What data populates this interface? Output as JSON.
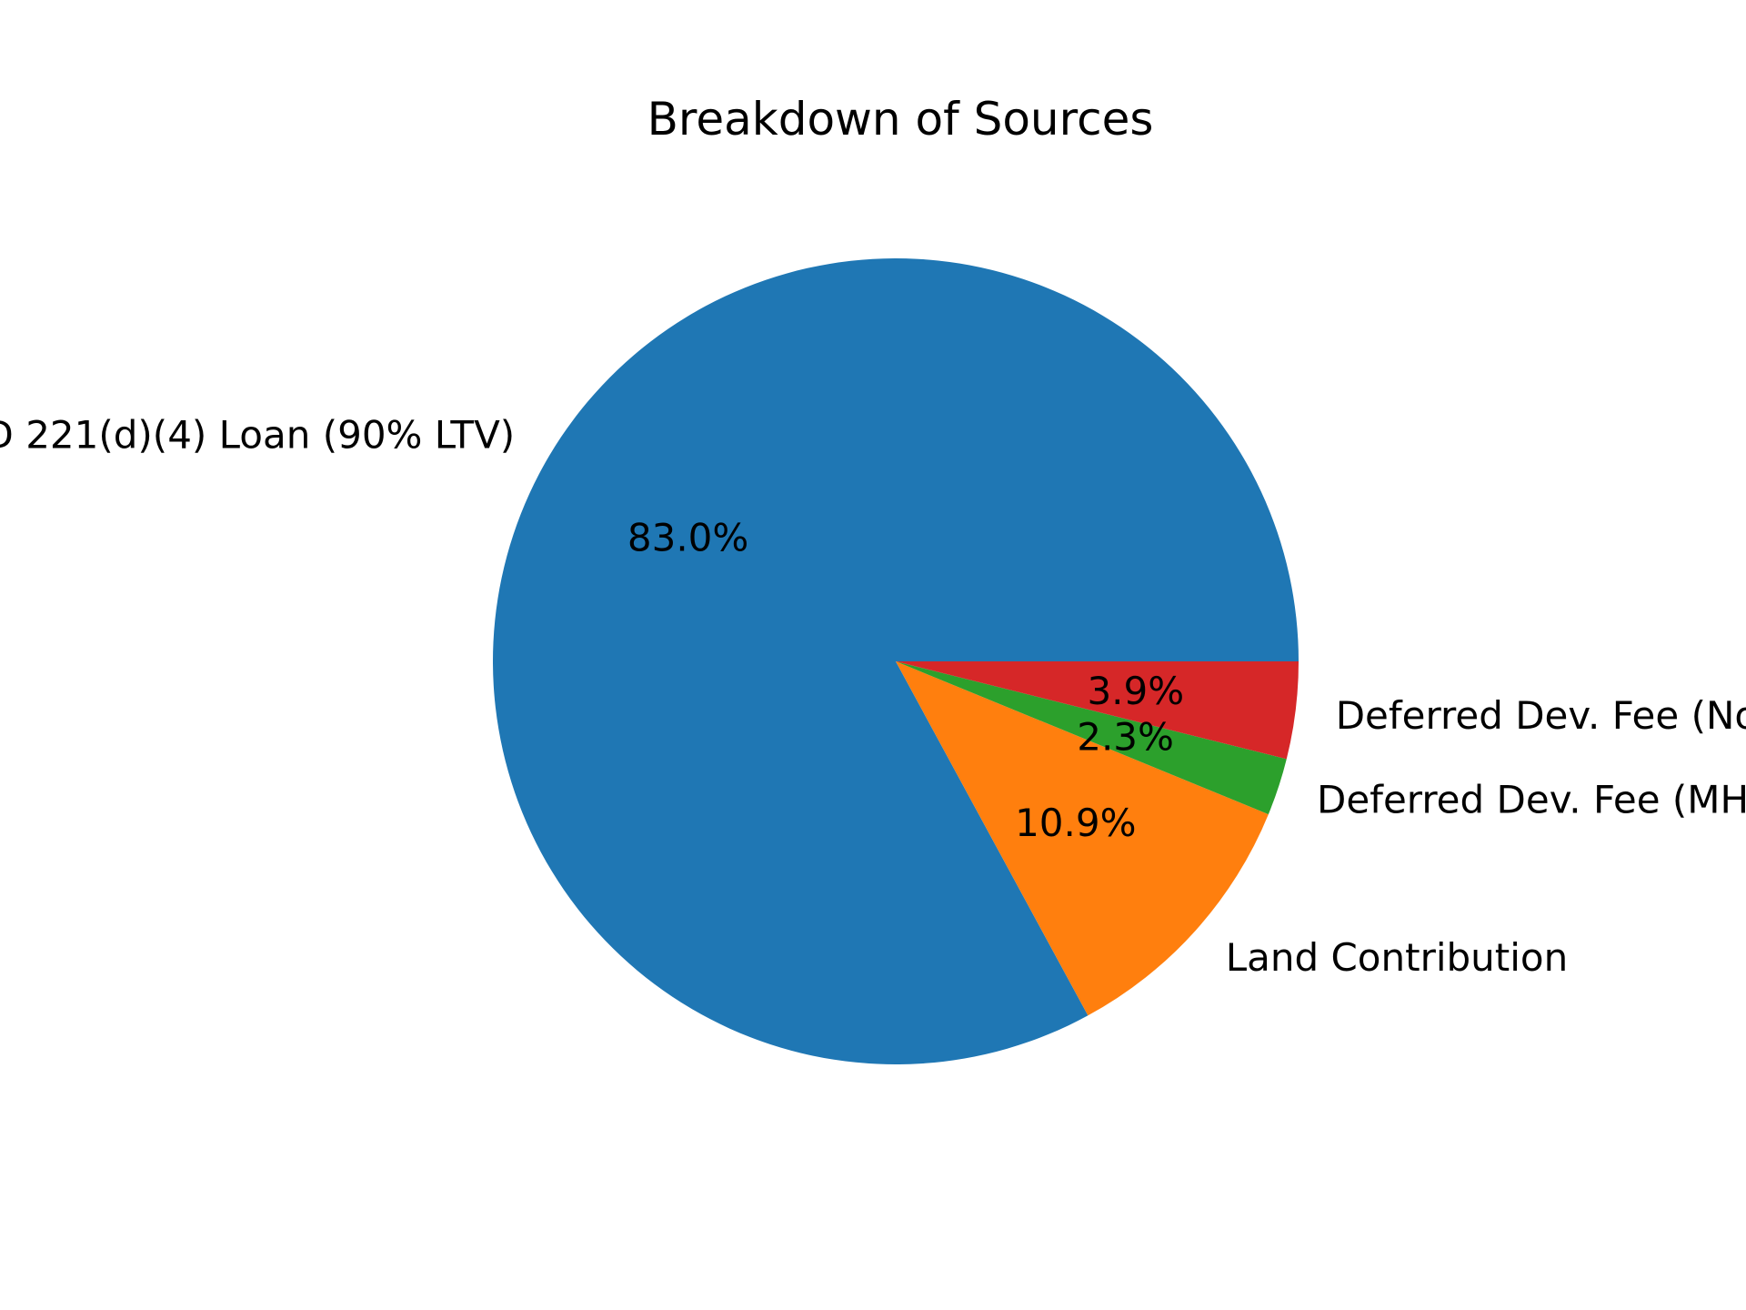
{
  "chart_data": {
    "type": "pie",
    "title": "Breakdown of Sources",
    "slices": [
      {
        "label": "D 221(d)(4) Loan (90% LTV)",
        "value": 83.0,
        "pct_label": "83.0%",
        "color": "#1f77b4"
      },
      {
        "label": "Land Contribution",
        "value": 10.9,
        "pct_label": "10.9%",
        "color": "#ff7f0e"
      },
      {
        "label": "Deferred Dev. Fee (MH",
        "value": 2.3,
        "pct_label": "2.3%",
        "color": "#2ca02c"
      },
      {
        "label": "Deferred Dev. Fee (No",
        "value": 3.9,
        "pct_label": "3.9%",
        "color": "#d62728"
      }
    ],
    "layout": {
      "startangle": 0,
      "counterclock": true,
      "labeldistance": 1.1,
      "pctdistance": 0.6,
      "legend": "none",
      "background": "#ffffff",
      "text_color": "#000000"
    }
  }
}
